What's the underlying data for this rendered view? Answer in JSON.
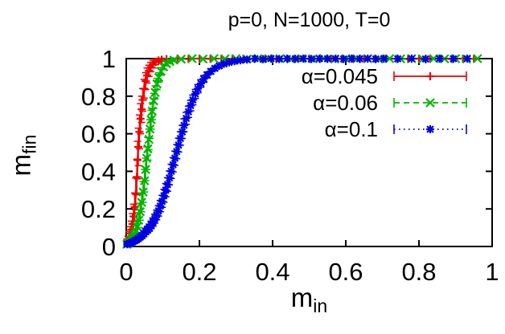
{
  "axes": {
    "x_main": "m",
    "x_sub": "in",
    "y_main": "m",
    "y_sub": "fin"
  },
  "chart_data": {
    "type": "line",
    "title": "p=0, N=1000, T=0",
    "xlabel": "m_in",
    "ylabel": "m_fin",
    "xlim": [
      0,
      1
    ],
    "ylim": [
      0,
      1
    ],
    "x_ticks": [
      0,
      0.2,
      0.4,
      0.6,
      0.8,
      1
    ],
    "y_ticks": [
      0,
      0.2,
      0.4,
      0.6,
      0.8,
      1
    ],
    "x_tick_labels": [
      "0",
      "0.2",
      "0.4",
      "0.6",
      "0.8",
      "1"
    ],
    "y_tick_labels": [
      "0",
      "0.2",
      "0.4",
      "0.6",
      "0.8",
      "1"
    ],
    "grid": false,
    "legend_position": "top-right-inside",
    "note": "errorbar curves; points are [m_in, m_fin, err]",
    "series": [
      {
        "name": "α=0.045",
        "color": "#ee0000",
        "marker": "plus",
        "line_style": "solid",
        "points": [
          [
            0.002,
            0.025,
            0.015
          ],
          [
            0.005,
            0.035,
            0.02
          ],
          [
            0.008,
            0.05,
            0.03
          ],
          [
            0.011,
            0.07,
            0.035
          ],
          [
            0.014,
            0.09,
            0.045
          ],
          [
            0.017,
            0.12,
            0.055
          ],
          [
            0.02,
            0.16,
            0.065
          ],
          [
            0.023,
            0.21,
            0.075
          ],
          [
            0.026,
            0.28,
            0.085
          ],
          [
            0.029,
            0.37,
            0.095
          ],
          [
            0.031,
            0.46,
            0.1
          ],
          [
            0.033,
            0.53,
            0.1
          ],
          [
            0.036,
            0.61,
            0.09
          ],
          [
            0.039,
            0.68,
            0.08
          ],
          [
            0.042,
            0.73,
            0.07
          ],
          [
            0.045,
            0.78,
            0.06
          ],
          [
            0.049,
            0.84,
            0.05
          ],
          [
            0.053,
            0.88,
            0.045
          ],
          [
            0.057,
            0.91,
            0.04
          ],
          [
            0.062,
            0.935,
            0.03
          ],
          [
            0.067,
            0.955,
            0.025
          ],
          [
            0.073,
            0.97,
            0.02
          ],
          [
            0.08,
            0.982,
            0.015
          ],
          [
            0.088,
            0.99,
            0.01
          ],
          [
            0.097,
            0.994,
            0.008
          ],
          [
            0.11,
            0.997,
            0.005
          ],
          [
            0.14,
            1,
            0.005
          ],
          [
            0.17,
            0.998,
            0.005
          ],
          [
            0.2,
            1,
            0.005
          ],
          [
            0.23,
            0.999,
            0.005
          ],
          [
            0.26,
            1,
            0.005
          ],
          [
            0.29,
            0.998,
            0.005
          ],
          [
            0.32,
            1,
            0.005
          ],
          [
            0.35,
            0.999,
            0.005
          ],
          [
            0.38,
            1,
            0.005
          ],
          [
            0.41,
            0.998,
            0.005
          ],
          [
            0.44,
            1,
            0.005
          ],
          [
            0.47,
            0.999,
            0.005
          ],
          [
            0.5,
            1,
            0.005
          ],
          [
            0.53,
            0.998,
            0.005
          ],
          [
            0.56,
            1,
            0.005
          ],
          [
            0.59,
            0.999,
            0.005
          ],
          [
            0.62,
            1,
            0.005
          ],
          [
            0.65,
            0.998,
            0.005
          ],
          [
            0.68,
            1,
            0.005
          ],
          [
            0.71,
            0.999,
            0.005
          ],
          [
            0.74,
            1,
            0.005
          ],
          [
            0.77,
            0.998,
            0.005
          ],
          [
            0.8,
            1,
            0.005
          ],
          [
            0.83,
            0.999,
            0.005
          ],
          [
            0.86,
            1,
            0.005
          ],
          [
            0.89,
            0.998,
            0.005
          ],
          [
            0.92,
            1,
            0.005
          ],
          [
            0.95,
            0.999,
            0.005
          ]
        ]
      },
      {
        "name": "α=0.06",
        "color": "#00b400",
        "marker": "cross",
        "line_style": "dashed",
        "points": [
          [
            0.002,
            0.012,
            0.01
          ],
          [
            0.006,
            0.018,
            0.012
          ],
          [
            0.01,
            0.025,
            0.015
          ],
          [
            0.014,
            0.035,
            0.018
          ],
          [
            0.018,
            0.047,
            0.02
          ],
          [
            0.022,
            0.06,
            0.025
          ],
          [
            0.026,
            0.08,
            0.03
          ],
          [
            0.03,
            0.105,
            0.035
          ],
          [
            0.034,
            0.14,
            0.04
          ],
          [
            0.038,
            0.185,
            0.045
          ],
          [
            0.042,
            0.235,
            0.05
          ],
          [
            0.046,
            0.29,
            0.055
          ],
          [
            0.05,
            0.35,
            0.06
          ],
          [
            0.053,
            0.41,
            0.06
          ],
          [
            0.056,
            0.47,
            0.06
          ],
          [
            0.059,
            0.52,
            0.06
          ],
          [
            0.062,
            0.57,
            0.055
          ],
          [
            0.065,
            0.625,
            0.05
          ],
          [
            0.068,
            0.675,
            0.05
          ],
          [
            0.071,
            0.72,
            0.045
          ],
          [
            0.075,
            0.775,
            0.04
          ],
          [
            0.079,
            0.82,
            0.035
          ],
          [
            0.084,
            0.865,
            0.03
          ],
          [
            0.089,
            0.9,
            0.025
          ],
          [
            0.095,
            0.932,
            0.02
          ],
          [
            0.102,
            0.956,
            0.015
          ],
          [
            0.11,
            0.973,
            0.012
          ],
          [
            0.119,
            0.985,
            0.01
          ],
          [
            0.13,
            0.992,
            0.008
          ],
          [
            0.15,
            0.997,
            0.004
          ],
          [
            0.18,
            1,
            0.004
          ],
          [
            0.21,
            0.998,
            0.004
          ],
          [
            0.24,
            1,
            0.004
          ],
          [
            0.27,
            0.999,
            0.004
          ],
          [
            0.3,
            1,
            0.004
          ],
          [
            0.33,
            0.998,
            0.004
          ],
          [
            0.36,
            1,
            0.004
          ],
          [
            0.39,
            0.999,
            0.004
          ],
          [
            0.42,
            1,
            0.004
          ],
          [
            0.45,
            0.998,
            0.004
          ],
          [
            0.48,
            1,
            0.004
          ],
          [
            0.51,
            0.999,
            0.004
          ],
          [
            0.54,
            1,
            0.004
          ],
          [
            0.57,
            0.998,
            0.004
          ],
          [
            0.6,
            1,
            0.004
          ],
          [
            0.63,
            0.999,
            0.004
          ],
          [
            0.66,
            1,
            0.004
          ],
          [
            0.69,
            0.998,
            0.004
          ],
          [
            0.72,
            1,
            0.004
          ],
          [
            0.75,
            0.999,
            0.004
          ],
          [
            0.78,
            1,
            0.004
          ],
          [
            0.81,
            0.998,
            0.004
          ],
          [
            0.84,
            1,
            0.004
          ],
          [
            0.87,
            0.999,
            0.004
          ],
          [
            0.9,
            1,
            0.004
          ],
          [
            0.93,
            0.998,
            0.004
          ],
          [
            0.96,
            1,
            0.004
          ]
        ]
      },
      {
        "name": "α=0.1",
        "color": "#0000e0",
        "marker": "asterisk",
        "line_style": "dotted",
        "points": [
          [
            0.003,
            0.012,
            0.008
          ],
          [
            0.008,
            0.016,
            0.009
          ],
          [
            0.013,
            0.02,
            0.01
          ],
          [
            0.018,
            0.025,
            0.01
          ],
          [
            0.023,
            0.03,
            0.012
          ],
          [
            0.028,
            0.035,
            0.012
          ],
          [
            0.033,
            0.042,
            0.013
          ],
          [
            0.038,
            0.05,
            0.014
          ],
          [
            0.043,
            0.058,
            0.015
          ],
          [
            0.048,
            0.068,
            0.016
          ],
          [
            0.053,
            0.08,
            0.017
          ],
          [
            0.058,
            0.09,
            0.018
          ],
          [
            0.063,
            0.1,
            0.019
          ],
          [
            0.068,
            0.115,
            0.02
          ],
          [
            0.073,
            0.13,
            0.022
          ],
          [
            0.078,
            0.148,
            0.024
          ],
          [
            0.083,
            0.168,
            0.026
          ],
          [
            0.088,
            0.19,
            0.028
          ],
          [
            0.093,
            0.215,
            0.03
          ],
          [
            0.098,
            0.24,
            0.032
          ],
          [
            0.103,
            0.27,
            0.034
          ],
          [
            0.108,
            0.3,
            0.035
          ],
          [
            0.113,
            0.33,
            0.036
          ],
          [
            0.118,
            0.365,
            0.037
          ],
          [
            0.123,
            0.4,
            0.038
          ],
          [
            0.128,
            0.435,
            0.038
          ],
          [
            0.133,
            0.47,
            0.038
          ],
          [
            0.138,
            0.505,
            0.038
          ],
          [
            0.143,
            0.54,
            0.037
          ],
          [
            0.148,
            0.575,
            0.036
          ],
          [
            0.153,
            0.61,
            0.035
          ],
          [
            0.158,
            0.645,
            0.034
          ],
          [
            0.164,
            0.682,
            0.032
          ],
          [
            0.17,
            0.717,
            0.03
          ],
          [
            0.176,
            0.75,
            0.028
          ],
          [
            0.182,
            0.78,
            0.026
          ],
          [
            0.189,
            0.812,
            0.024
          ],
          [
            0.196,
            0.84,
            0.022
          ],
          [
            0.204,
            0.868,
            0.02
          ],
          [
            0.212,
            0.892,
            0.018
          ],
          [
            0.221,
            0.913,
            0.016
          ],
          [
            0.231,
            0.932,
            0.014
          ],
          [
            0.242,
            0.948,
            0.012
          ],
          [
            0.254,
            0.961,
            0.01
          ],
          [
            0.267,
            0.972,
            0.009
          ],
          [
            0.281,
            0.98,
            0.008
          ],
          [
            0.296,
            0.986,
            0.007
          ],
          [
            0.312,
            0.991,
            0.006
          ],
          [
            0.33,
            0.995,
            0.004
          ],
          [
            0.352,
            1,
            0.004
          ],
          [
            0.374,
            0.997,
            0.004
          ],
          [
            0.396,
            1,
            0.004
          ],
          [
            0.418,
            0.998,
            0.004
          ],
          [
            0.44,
            1,
            0.004
          ],
          [
            0.462,
            0.999,
            0.004
          ],
          [
            0.484,
            1,
            0.004
          ],
          [
            0.506,
            0.998,
            0.004
          ],
          [
            0.528,
            1,
            0.004
          ],
          [
            0.55,
            0.999,
            0.004
          ],
          [
            0.572,
            1,
            0.004
          ],
          [
            0.594,
            0.998,
            0.004
          ],
          [
            0.616,
            1,
            0.004
          ],
          [
            0.638,
            0.999,
            0.004
          ],
          [
            0.66,
            1,
            0.004
          ],
          [
            0.682,
            0.998,
            0.004
          ],
          [
            0.704,
            1,
            0.004
          ],
          [
            0.742,
            0.999,
            0.004
          ],
          [
            0.78,
            1,
            0.004
          ],
          [
            0.818,
            0.998,
            0.004
          ],
          [
            0.856,
            1,
            0.004
          ],
          [
            0.894,
            0.999,
            0.004
          ],
          [
            0.932,
            1,
            0.004
          ]
        ]
      }
    ]
  }
}
